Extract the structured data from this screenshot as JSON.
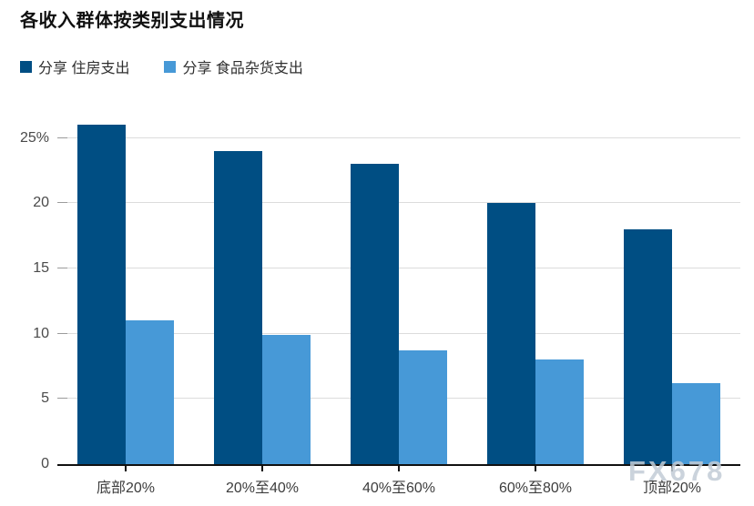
{
  "title": "各收入群体按类别支出情况",
  "watermark": "FX678",
  "colors": {
    "housing": "#004e83",
    "groceries": "#4799d7",
    "gridline": "#dcdcdc",
    "axis": "#111111",
    "watermark": "#c2ccd6"
  },
  "legend": {
    "items": [
      {
        "label": "分享 住房支出",
        "color": "#004e83"
      },
      {
        "label": "分享 食品杂货支出",
        "color": "#4799d7"
      }
    ]
  },
  "chart_data": {
    "type": "bar",
    "title": "各收入群体按类别支出情况",
    "categories": [
      "底部20%",
      "20%至40%",
      "40%至60%",
      "60%至80%",
      "顶部20%"
    ],
    "series": [
      {
        "name": "分享 住房支出",
        "color": "#004e83",
        "values": [
          26,
          24,
          23,
          20,
          18
        ]
      },
      {
        "name": "分享 食品杂货支出",
        "color": "#4799d7",
        "values": [
          11,
          9.9,
          8.7,
          8,
          6.2
        ]
      }
    ],
    "xlabel": "",
    "ylabel": "",
    "ylim": [
      0,
      26.5
    ],
    "yticks": [
      0,
      5,
      10,
      15,
      20,
      25
    ],
    "ytick_labels": [
      "0",
      "5",
      "10",
      "15",
      "20",
      "25%"
    ],
    "grid": true,
    "legend_position": "top-left"
  }
}
